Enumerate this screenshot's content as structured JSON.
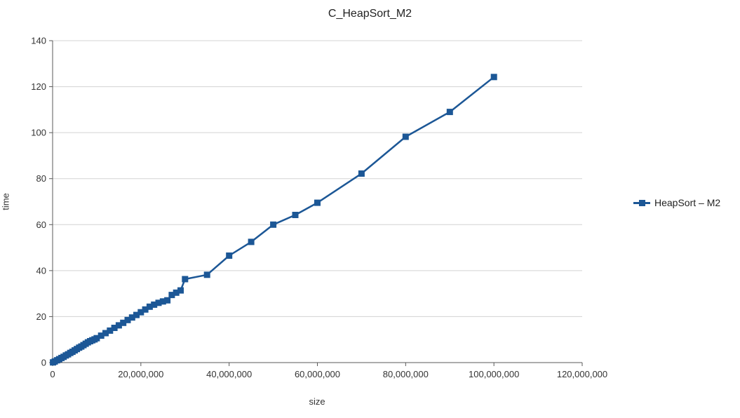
{
  "title": "C_HeapSort_M2",
  "legend": {
    "label": "HeapSort – M2"
  },
  "colors": {
    "series": "#1c5796",
    "grid": "#d3d3d3",
    "axis": "#595959",
    "text": "#333333",
    "background": "#ffffff"
  },
  "chart_data": {
    "type": "line",
    "title": "C_HeapSort_M2",
    "xlabel": "size",
    "ylabel": "time",
    "xlim": [
      0,
      120000000
    ],
    "ylim": [
      0,
      140
    ],
    "grid": "horizontal",
    "legend_position": "right",
    "x_ticks": [
      {
        "value": 0,
        "label": "0"
      },
      {
        "value": 20000000,
        "label": "20,000,000"
      },
      {
        "value": 40000000,
        "label": "40,000,000"
      },
      {
        "value": 60000000,
        "label": "60,000,000"
      },
      {
        "value": 80000000,
        "label": "80,000,000"
      },
      {
        "value": 100000000,
        "label": "100,000,000"
      },
      {
        "value": 120000000,
        "label": "120,000,000"
      }
    ],
    "y_ticks": [
      {
        "value": 0,
        "label": "0"
      },
      {
        "value": 20,
        "label": "20"
      },
      {
        "value": 40,
        "label": "40"
      },
      {
        "value": 60,
        "label": "60"
      },
      {
        "value": 80,
        "label": "80"
      },
      {
        "value": 100,
        "label": "100"
      },
      {
        "value": 120,
        "label": "120"
      },
      {
        "value": 140,
        "label": "140"
      }
    ],
    "series": [
      {
        "name": "HeapSort – M2",
        "color": "#1c5796",
        "marker": "square",
        "points": [
          [
            100000,
            0.1
          ],
          [
            500000,
            0.5
          ],
          [
            1000000,
            1.0
          ],
          [
            1500000,
            1.5
          ],
          [
            2000000,
            2.0
          ],
          [
            2500000,
            2.5
          ],
          [
            3000000,
            3.1
          ],
          [
            3500000,
            3.6
          ],
          [
            4000000,
            4.2
          ],
          [
            4500000,
            4.7
          ],
          [
            5000000,
            5.3
          ],
          [
            5500000,
            5.9
          ],
          [
            6000000,
            6.5
          ],
          [
            6500000,
            7.0
          ],
          [
            7000000,
            7.6
          ],
          [
            7500000,
            8.2
          ],
          [
            8000000,
            8.8
          ],
          [
            8500000,
            9.3
          ],
          [
            9000000,
            9.7
          ],
          [
            9500000,
            10.1
          ],
          [
            10000000,
            10.6
          ],
          [
            11000000,
            11.7
          ],
          [
            12000000,
            12.8
          ],
          [
            13000000,
            13.9
          ],
          [
            14000000,
            15.1
          ],
          [
            15000000,
            16.2
          ],
          [
            16000000,
            17.3
          ],
          [
            17000000,
            18.5
          ],
          [
            18000000,
            19.6
          ],
          [
            19000000,
            20.7
          ],
          [
            20000000,
            21.9
          ],
          [
            21000000,
            23.1
          ],
          [
            22000000,
            24.3
          ],
          [
            23000000,
            25.2
          ],
          [
            24000000,
            26.0
          ],
          [
            25000000,
            26.6
          ],
          [
            26000000,
            27.1
          ],
          [
            27000000,
            29.4
          ],
          [
            28000000,
            30.4
          ],
          [
            29000000,
            31.4
          ],
          [
            30000000,
            36.3
          ],
          [
            35000000,
            38.2
          ],
          [
            40000000,
            46.5
          ],
          [
            45000000,
            52.5
          ],
          [
            50000000,
            60.0
          ],
          [
            55000000,
            64.2
          ],
          [
            60000000,
            69.5
          ],
          [
            70000000,
            82.2
          ],
          [
            80000000,
            98.2
          ],
          [
            90000000,
            109.0
          ],
          [
            100000000,
            124.2
          ]
        ]
      }
    ]
  }
}
